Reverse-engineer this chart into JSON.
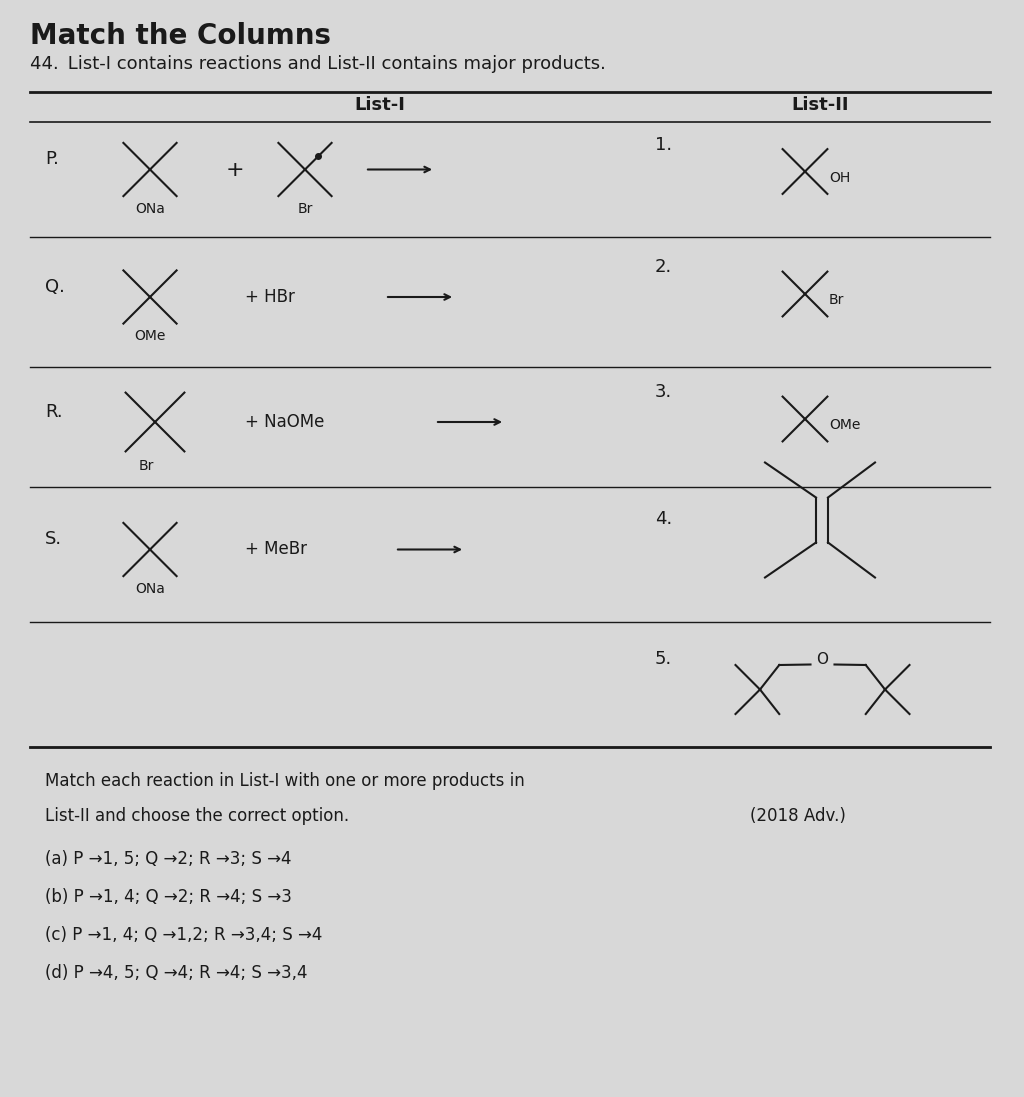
{
  "title": "Match the Columns",
  "subtitle": "44. List-I contains reactions and List-II contains major products.",
  "background_color": "#d8d8d8",
  "text_color": "#1a1a1a",
  "list1_header": "List-I",
  "list2_header": "List-II",
  "rows": [
    "P.",
    "Q.",
    "R.",
    "S."
  ],
  "list1_reagents": [
    " + HBr ⟶",
    "+ NaOMe ⟶",
    "+ MeBr ⟶"
  ],
  "list2_numbers": [
    "1.",
    "2.",
    "3.",
    "4.",
    "5."
  ],
  "answer_text": "Match each reaction in List-I with one or more products in\nList-II and choose the correct option.",
  "year_text": "(2018 Adv.)",
  "options": [
    "(a) P →1, 5; Q →2; R →3; S →4",
    "(b) P →1, 4; Q →2; R →4; S →3",
    "(c) P →1, 4; Q →1,2; R →3,4; S →4",
    "(d) P →4, 5; Q →4; R →4; S →3,4"
  ]
}
